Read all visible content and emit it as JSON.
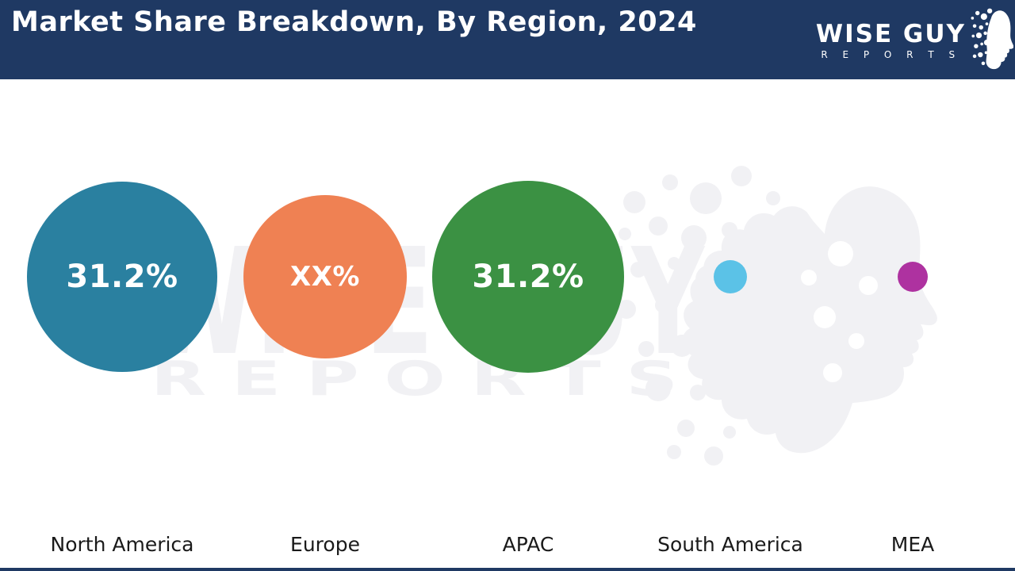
{
  "header": {
    "title": "Market Share Breakdown, By Region, 2024",
    "logo": {
      "wordmark": "WISE GUY",
      "subtext": "R E P O R T S"
    }
  },
  "watermark": {
    "wordmark": "WISE GUY",
    "subtext": "R E P O R T S"
  },
  "colors": {
    "header_navy": "#1F3963",
    "watermark_gray": "#F1F1F4",
    "label_text": "#1A1A1A",
    "north_america": "#2A80A0",
    "europe": "#EF8153",
    "apac": "#3B9143",
    "south_america": "#5BC2E7",
    "mea": "#AE32A0"
  },
  "chart_data": {
    "type": "bubble",
    "title": "Market Share Breakdown, By Region, 2024",
    "categories": [
      "North America",
      "Europe",
      "APAC",
      "South America",
      "MEA"
    ],
    "series": [
      {
        "name": "North America",
        "value_label": "31.2%",
        "value_pct": 31.2,
        "color": "#2A80A0",
        "radius_px": 120
      },
      {
        "name": "Europe",
        "value_label": "XX%",
        "value_pct": null,
        "color": "#EF8153",
        "radius_px": 103
      },
      {
        "name": "APAC",
        "value_label": "31.2%",
        "value_pct": 31.2,
        "color": "#3B9143",
        "radius_px": 121
      },
      {
        "name": "South America",
        "value_label": "",
        "value_pct": null,
        "color": "#5BC2E7",
        "radius_px": 21
      },
      {
        "name": "MEA",
        "value_label": "",
        "value_pct": null,
        "color": "#AE32A0",
        "radius_px": 19
      }
    ],
    "legend": "none",
    "grid": false
  }
}
